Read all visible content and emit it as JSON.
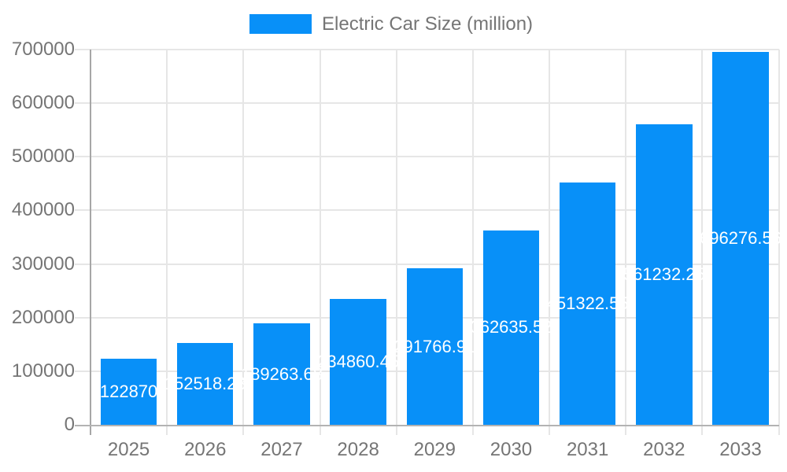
{
  "chart_data": {
    "type": "bar",
    "title": "Electric Car Size (million)",
    "legend": {
      "position": "top",
      "label": "Electric Car Size (million)"
    },
    "categories": [
      "2025",
      "2026",
      "2027",
      "2028",
      "2029",
      "2030",
      "2031",
      "2032",
      "2033"
    ],
    "series": [
      {
        "name": "Electric Car Size (million)",
        "values": [
          122870,
          152518.23,
          189263.68,
          234860.45,
          291766.91,
          362635.52,
          451322.55,
          561232.25,
          696276.56
        ]
      }
    ],
    "value_labels": [
      "122870",
      "152518.23",
      "189263.68",
      "234860.45",
      "291766.91",
      "362635.52",
      "451322.55",
      "561232.25",
      "696276.56"
    ],
    "xlabel": "",
    "ylabel": "",
    "ylim": [
      0,
      700000
    ],
    "ytick_step": 100000,
    "ytick_labels": [
      "0",
      "100000",
      "200000",
      "300000",
      "400000",
      "500000",
      "600000",
      "700000"
    ],
    "grid": true,
    "colors": {
      "bar": "#0890f8",
      "value_label_text": "#ffffff",
      "axis_text": "#757575",
      "gridline": "#e6e6e6",
      "baseline": "#b3b3b3",
      "axis_line": "#a6a6a6"
    }
  }
}
